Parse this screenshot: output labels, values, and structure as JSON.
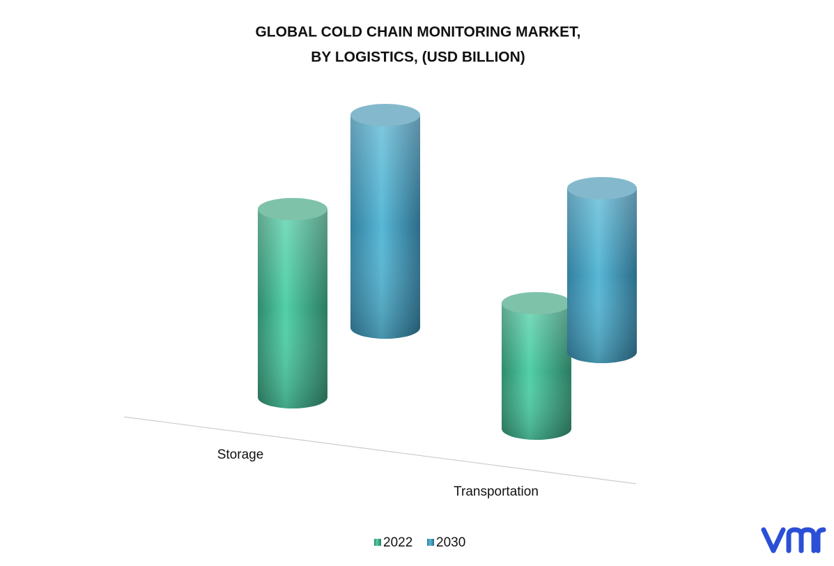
{
  "chart_data": {
    "type": "cylinder-bar",
    "title": [
      "GLOBAL COLD CHAIN MONITORING MARKET,",
      "BY LOGISTICS, (USD BILLION)"
    ],
    "categories": [
      "Storage",
      "Transportation"
    ],
    "series": [
      {
        "name": "2022",
        "color": "#45c29c",
        "values": [
          2.7,
          1.8
        ]
      },
      {
        "name": "2030",
        "color": "#4fb0cf",
        "values": [
          3.05,
          2.35
        ]
      }
    ],
    "legend": "bottom"
  }
}
